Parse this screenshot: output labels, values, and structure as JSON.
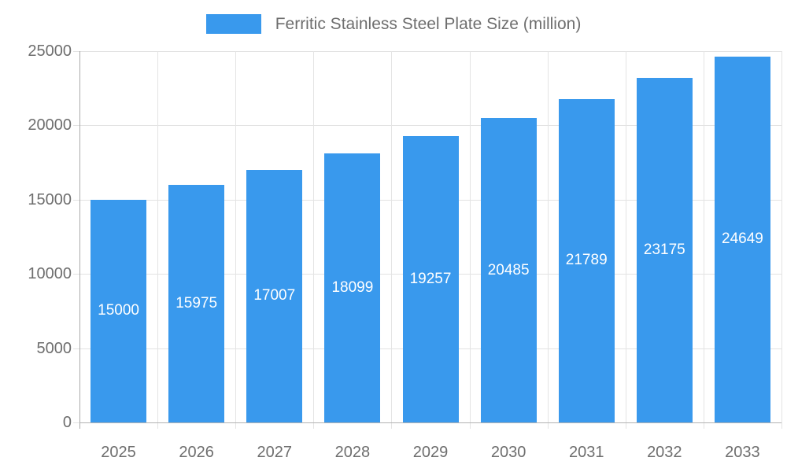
{
  "legend": {
    "label": "Ferritic Stainless Steel Plate Size (million)"
  },
  "chart_data": {
    "type": "bar",
    "title": "Ferritic Stainless Steel Plate Size (million)",
    "categories": [
      "2025",
      "2026",
      "2027",
      "2028",
      "2029",
      "2030",
      "2031",
      "2032",
      "2033"
    ],
    "values": [
      15000,
      15975,
      17007,
      18099,
      19257,
      20485,
      21789,
      23175,
      24649
    ],
    "series": [
      {
        "name": "Ferritic Stainless Steel Plate Size (million)",
        "values": [
          15000,
          15975,
          17007,
          18099,
          19257,
          20485,
          21789,
          23175,
          24649
        ]
      }
    ],
    "xlabel": "",
    "ylabel": "",
    "ylim": [
      0,
      25000
    ],
    "yticks": [
      0,
      5000,
      10000,
      15000,
      20000,
      25000
    ],
    "grid": true,
    "legend_position": "top",
    "value_labels": "inside-center",
    "colors": {
      "bar": "#3999ed",
      "value_label": "#ffffff",
      "axis_text": "#6e6e6e",
      "gridline": "#e2e2e2",
      "axis_line": "#a9a9a9",
      "background": "#ffffff"
    }
  }
}
